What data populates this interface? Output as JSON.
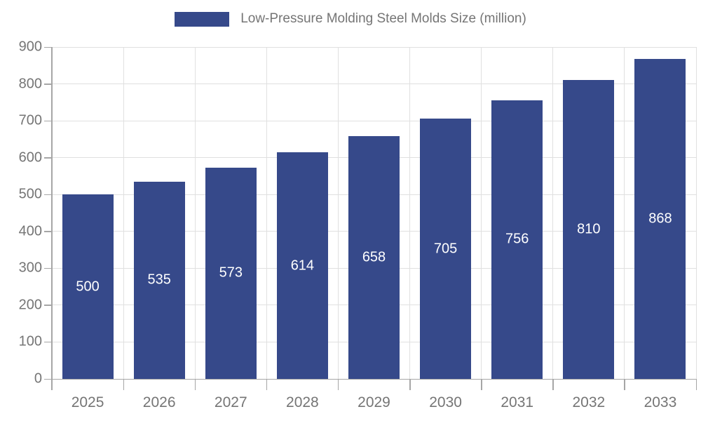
{
  "legend": {
    "label": "Low-Pressure Molding Steel Molds Size (million)",
    "swatch_color": "#36498a"
  },
  "chart_data": {
    "type": "bar",
    "title": "Low-Pressure Molding Steel Molds Size (million)",
    "series_name": "Low-Pressure Molding Steel Molds Size (million)",
    "categories": [
      "2025",
      "2026",
      "2027",
      "2028",
      "2029",
      "2030",
      "2031",
      "2032",
      "2033"
    ],
    "values": [
      500,
      535,
      573,
      614,
      658,
      705,
      756,
      810,
      868
    ],
    "xlabel": "",
    "ylabel": "",
    "ylim": [
      0,
      900
    ],
    "ytick_step": 100,
    "yticks": [
      0,
      100,
      200,
      300,
      400,
      500,
      600,
      700,
      800,
      900
    ],
    "grid": true,
    "legend_position": "top",
    "value_labels": "inside-center",
    "colors": {
      "bar": "#36498a",
      "value_label": "#ffffff",
      "axis_text": "#757575",
      "legend_text": "#757575",
      "gridline": "#e0e0e0",
      "axis_line": "#a6a6a6",
      "background": "#ffffff"
    }
  }
}
